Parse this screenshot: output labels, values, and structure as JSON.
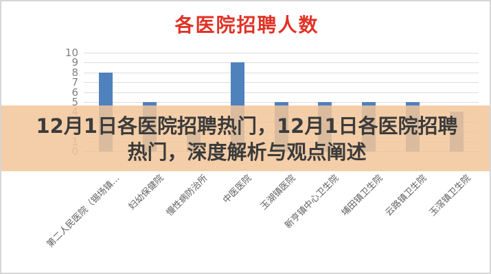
{
  "chart_data": {
    "type": "bar",
    "title": "各医院招聘人数",
    "categories": [
      "第二人民医院（锡场镇…",
      "妇幼保健院",
      "慢性病防治所",
      "中医医院",
      "玉湖镇医院",
      "新亨镇中心卫生院",
      "埔田镇卫生院",
      "云路镇卫生院",
      "玉滘镇卫生院"
    ],
    "values": [
      8,
      5,
      2,
      9,
      5,
      5,
      5,
      5,
      4
    ],
    "xlabel": "",
    "ylabel": "",
    "ylim": [
      0,
      10
    ],
    "yticks": [
      0,
      1,
      2,
      3,
      4,
      5,
      6,
      7,
      8,
      9,
      10
    ],
    "grid": true,
    "legend": "none"
  },
  "overlay": {
    "line1": "12月1日各医院招聘热门，12月1日各医院招聘",
    "line2": "热门，深度解析与观点阐述"
  },
  "colors": {
    "title": "#e03226",
    "bar": "#4f81bd",
    "gridline": "#dcdcdc",
    "zero_line": "#c9c9c9",
    "axis_tick_label": "#7f7f7f",
    "category_label": "#5f5f5f",
    "overlay_background": "rgba(242,197,153,0.85)",
    "overlay_text": "#3b3b3b",
    "frame_border": "#d6d6d6",
    "background": "#ffffff"
  }
}
